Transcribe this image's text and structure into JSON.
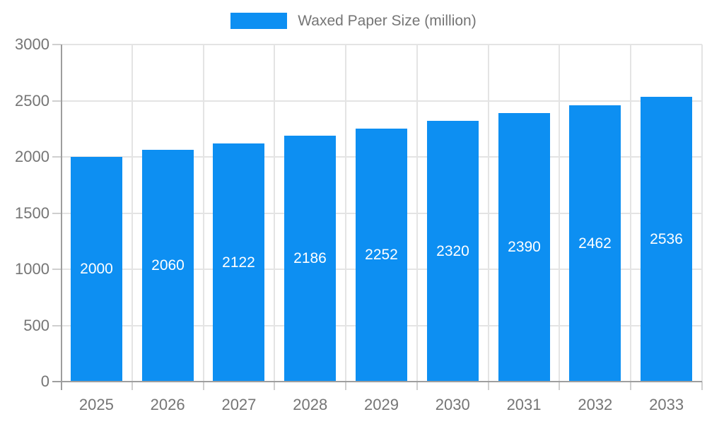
{
  "legend": {
    "label": "Waxed Paper Size (million)"
  },
  "colors": {
    "bar": "#0d8ff2",
    "axis_line": "#9e9e9e",
    "grid_line": "#e4e4e4",
    "tick_mark": "#cfcfcf",
    "axis_label": "#757575",
    "bar_label": "#ffffff",
    "background": "#ffffff"
  },
  "chart_data": {
    "type": "bar",
    "title": "",
    "xlabel": "",
    "ylabel": "",
    "categories": [
      "2025",
      "2026",
      "2027",
      "2028",
      "2029",
      "2030",
      "2031",
      "2032",
      "2033"
    ],
    "series": [
      {
        "name": "Waxed Paper Size (million)",
        "values": [
          2000,
          2060,
          2122,
          2186,
          2252,
          2320,
          2390,
          2462,
          2536
        ]
      }
    ],
    "ylim": [
      0,
      3000
    ],
    "yticks": [
      0,
      500,
      1000,
      1500,
      2000,
      2500,
      3000
    ],
    "grid": true,
    "legend_position": "top",
    "bar_value_labels": "inside-center, white"
  }
}
